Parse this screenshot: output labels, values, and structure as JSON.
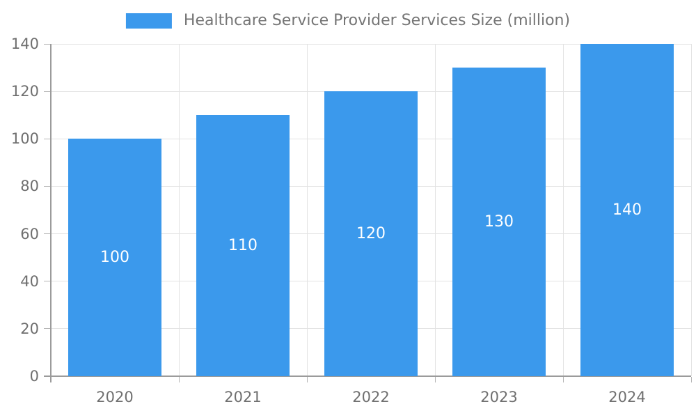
{
  "legend": {
    "label": "Healthcare Service Provider Services Size (million)"
  },
  "chart_data": {
    "type": "bar",
    "title": "Healthcare Service Provider Services Size (million)",
    "categories": [
      "2020",
      "2021",
      "2022",
      "2023",
      "2024"
    ],
    "values": [
      100,
      110,
      120,
      130,
      140
    ],
    "data_labels": [
      "100",
      "110",
      "120",
      "130",
      "140"
    ],
    "xlabel": "",
    "ylabel": "",
    "ylim": [
      0,
      140
    ],
    "yticks": [
      0,
      20,
      40,
      60,
      80,
      100,
      120,
      140
    ],
    "grid": true,
    "legend_position": "top",
    "colors": {
      "bar": "#3b99ec",
      "grid": "#e3e3e3",
      "axis": "#9b9b9b",
      "tick": "#b5b5b5",
      "tick_label": "#6f6f6f",
      "legend_text": "#757575",
      "data_label": "#ffffff",
      "background": "#ffffff"
    }
  }
}
